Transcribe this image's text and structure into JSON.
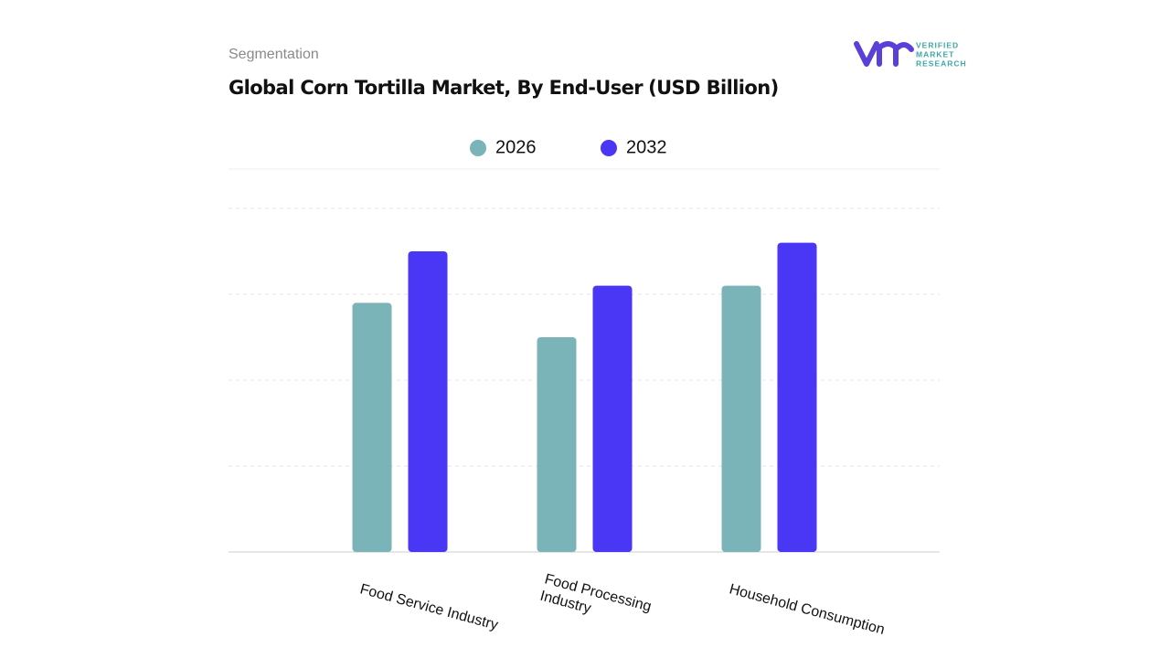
{
  "header": "Segmentation",
  "logo": {
    "lines": [
      "VERIFIED",
      "MARKET",
      "RESEARCH"
    ]
  },
  "chart_data": {
    "type": "bar",
    "title": "Global Corn Tortilla Market, By End-User",
    "unit": "(USD Billion)",
    "categories": [
      [
        "Food Service Industry"
      ],
      [
        "Food Processing",
        "Industry"
      ],
      [
        "Household  Consumption"
      ]
    ],
    "series": [
      {
        "name": "2026",
        "color": "#7ab3b8",
        "values": [
          2.9,
          2.5,
          3.1
        ]
      },
      {
        "name": "2032",
        "color": "#4a36f5",
        "values": [
          3.5,
          3.1,
          3.6
        ]
      }
    ],
    "ylim": [
      0,
      4
    ],
    "gridlines": [
      1,
      2,
      3,
      4
    ]
  }
}
